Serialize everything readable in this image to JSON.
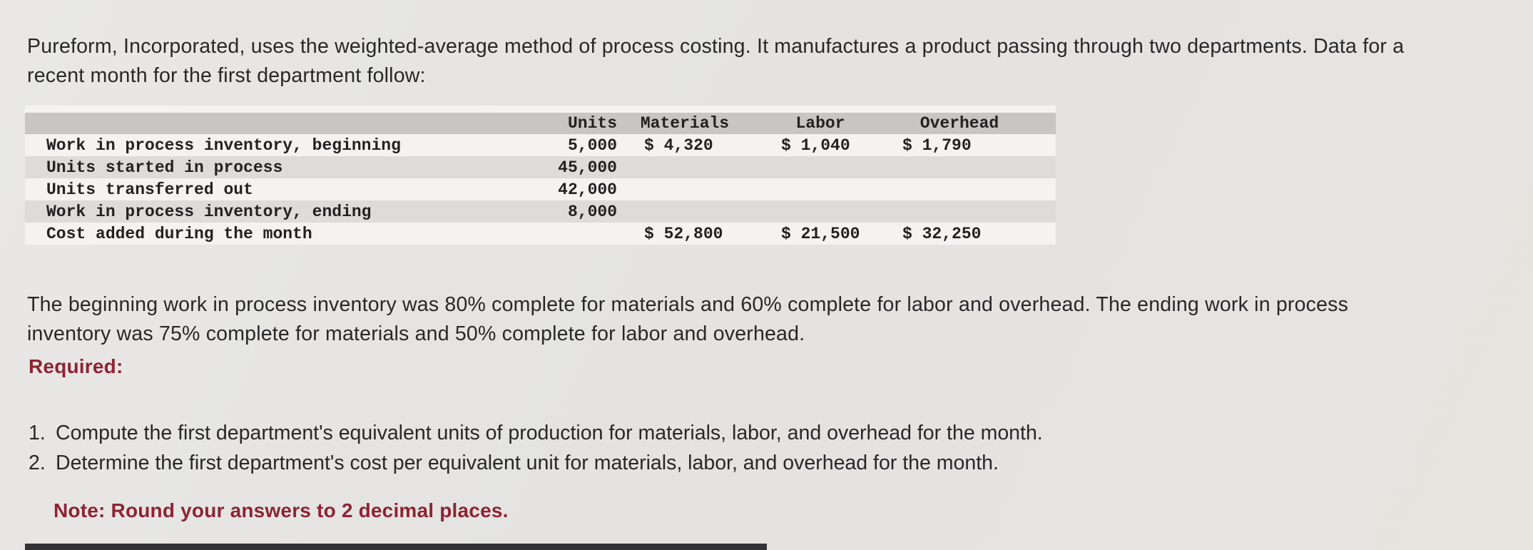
{
  "colors": {
    "accent_red": "#8d2433",
    "page_bg": "#e5e4e2",
    "table_header_bg": "#c8c6c4",
    "table_row_light": "#f4f3f1",
    "table_row_shade": "#dedcda",
    "text": "#28282a"
  },
  "intro": {
    "text": "Pureform, Incorporated, uses the weighted-average method of process costing. It manufactures a product passing through two departments. Data for a recent month for the first department follow:"
  },
  "table": {
    "headers": [
      "Units",
      "Materials",
      "Labor",
      "Overhead"
    ],
    "rows": [
      {
        "label": "Work in process inventory, beginning",
        "units": "5,000",
        "materials": "$ 4,320",
        "labor": "$ 1,040",
        "overhead": "$ 1,790"
      },
      {
        "label": "Units started in process",
        "units": "45,000",
        "materials": "",
        "labor": "",
        "overhead": ""
      },
      {
        "label": "Units transferred out",
        "units": "42,000",
        "materials": "",
        "labor": "",
        "overhead": ""
      },
      {
        "label": "Work in process inventory, ending",
        "units": "8,000",
        "materials": "",
        "labor": "",
        "overhead": ""
      },
      {
        "label": "Cost added during the month",
        "units": "",
        "materials": "$ 52,800",
        "labor": "$ 21,500",
        "overhead": "$ 32,250"
      }
    ]
  },
  "completion": {
    "text": "The beginning work in process inventory was 80% complete for materials and 60% complete for labor and overhead. The ending work in process inventory was 75% complete for materials and 50% complete for labor and overhead."
  },
  "required": {
    "label": "Required:"
  },
  "requirements": [
    {
      "number": "1.",
      "text": "Compute the first department's equivalent units of production for materials, labor, and overhead for the month."
    },
    {
      "number": "2.",
      "text": "Determine the first department's cost per equivalent unit for materials, labor, and overhead for the month."
    }
  ],
  "note": {
    "text": "Note: Round your answers to 2 decimal places."
  }
}
